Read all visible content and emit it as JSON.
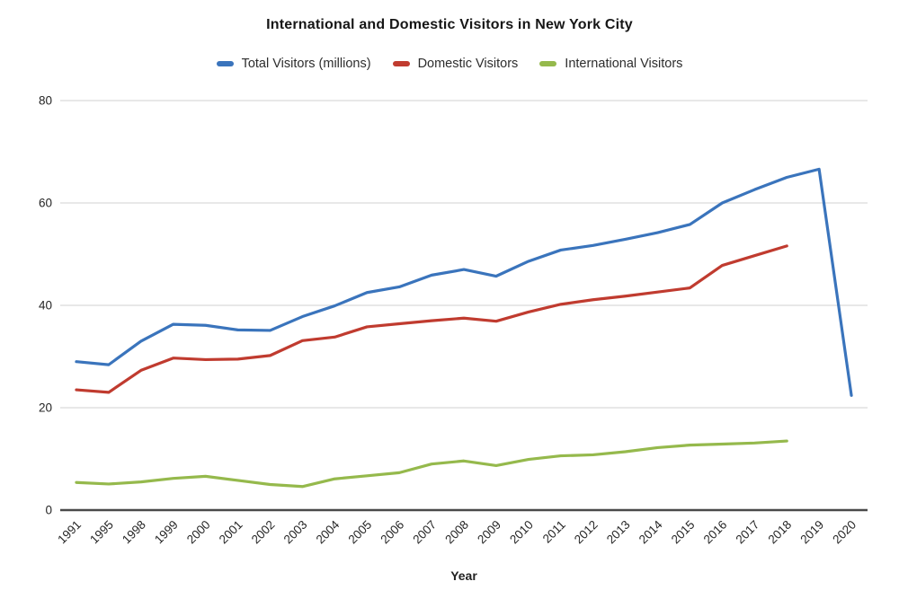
{
  "chart_data": {
    "type": "line",
    "title": "International and Domestic Visitors in New York City",
    "xlabel": "Year",
    "ylabel": "",
    "categories": [
      "1991",
      "1995",
      "1998",
      "1999",
      "2000",
      "2001",
      "2002",
      "2003",
      "2004",
      "2005",
      "2006",
      "2007",
      "2008",
      "2009",
      "2010",
      "2011",
      "2012",
      "2013",
      "2014",
      "2015",
      "2016",
      "2017",
      "2018",
      "2019",
      "2020"
    ],
    "ylim": [
      0,
      80
    ],
    "yticks": [
      0,
      20,
      40,
      60,
      80
    ],
    "grid": true,
    "legend_position": "top-center",
    "series": [
      {
        "name": "Total Visitors (millions)",
        "color": "#3a74bc",
        "values": [
          29.0,
          28.4,
          33.0,
          36.3,
          36.1,
          35.2,
          35.1,
          37.8,
          39.9,
          42.5,
          43.6,
          45.9,
          47.0,
          45.7,
          48.6,
          50.8,
          51.7,
          52.9,
          54.2,
          55.8,
          60.0,
          62.6,
          65.0,
          66.6,
          22.4
        ]
      },
      {
        "name": "Domestic Visitors",
        "color": "#c03b2f",
        "values": [
          23.5,
          23.0,
          27.3,
          29.7,
          29.4,
          29.5,
          30.2,
          33.1,
          33.8,
          35.8,
          36.4,
          37.0,
          37.5,
          36.9,
          38.7,
          40.2,
          41.1,
          41.8,
          42.6,
          43.4,
          47.8,
          49.7,
          51.6,
          null,
          null
        ]
      },
      {
        "name": "International Visitors",
        "color": "#95b94c",
        "values": [
          5.4,
          5.1,
          5.5,
          6.2,
          6.6,
          5.8,
          5.0,
          4.6,
          6.1,
          6.7,
          7.3,
          9.0,
          9.6,
          8.7,
          9.9,
          10.6,
          10.8,
          11.4,
          12.2,
          12.7,
          12.9,
          13.1,
          13.5,
          null,
          null
        ]
      }
    ],
    "colors": {
      "gridline": "#d9d9d9",
      "axis_line": "#4a4a4a",
      "text": "#262626"
    }
  }
}
